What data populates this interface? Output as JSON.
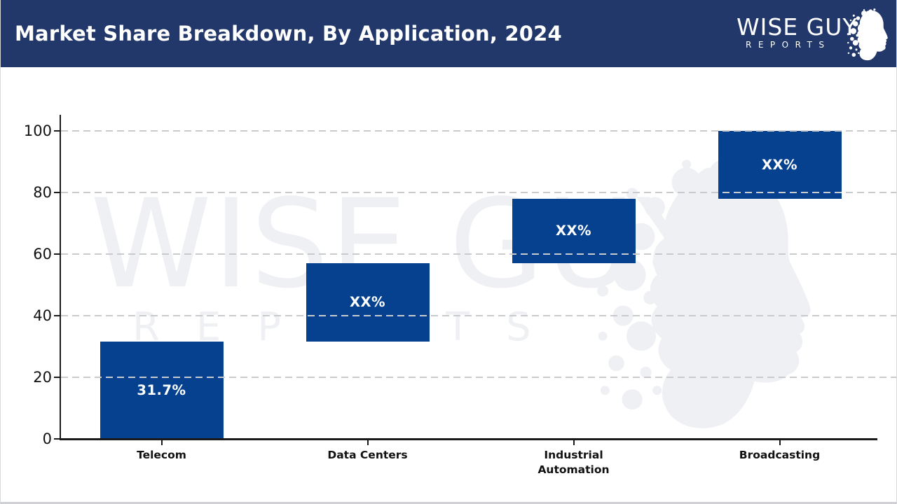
{
  "header": {
    "title": "Market Share Breakdown, By Application, 2024",
    "logo": {
      "line1": "WISE GUY",
      "line2": "REPORTS"
    }
  },
  "watermark": {
    "line1": "WISE GUY",
    "line2": "REPORTS"
  },
  "chart_data": {
    "type": "bar",
    "subtype": "waterfall",
    "title": "Market Share Breakdown, By Application, 2024",
    "categories": [
      "Telecom",
      "Data Centers",
      "Industrial Automation",
      "Broadcasting"
    ],
    "segments": [
      {
        "category": "Telecom",
        "start": 0,
        "end": 31.7,
        "label": "31.7%"
      },
      {
        "category": "Data Centers",
        "start": 31.7,
        "end": 57,
        "label": "XX%"
      },
      {
        "category": "Industrial Automation",
        "start": 57,
        "end": 78,
        "label": "XX%"
      },
      {
        "category": "Broadcasting",
        "start": 78,
        "end": 100,
        "label": "XX%"
      }
    ],
    "yticks": [
      0,
      20,
      40,
      60,
      80,
      100
    ],
    "ylim": [
      0,
      105
    ],
    "xlabel": "",
    "ylabel": "",
    "grid": "horizontal-dashed",
    "legend": "none"
  },
  "colors": {
    "header_bg": "#22386a",
    "title": "#ffffff",
    "bar": "#05418f",
    "bar_label": "#ffffff",
    "grid": "#c9cacd",
    "axis": "#1a1a1a",
    "watermark": "#eff0f3",
    "border": "#d8d9dc"
  }
}
